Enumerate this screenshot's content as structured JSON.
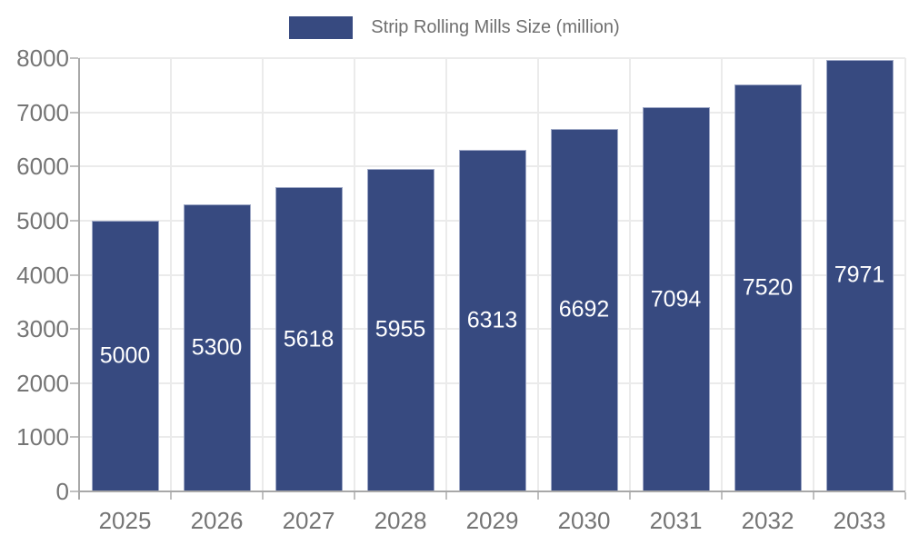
{
  "legend": {
    "label": "Strip Rolling Mills Size (million)"
  },
  "chart_data": {
    "type": "bar",
    "title": "Strip Rolling Mills Size (million)",
    "legend_entries": [
      "Strip Rolling Mills Size (million)"
    ],
    "legend_position": "top-center",
    "categories": [
      "2025",
      "2026",
      "2027",
      "2028",
      "2029",
      "2030",
      "2031",
      "2032",
      "2033"
    ],
    "series": [
      {
        "name": "Strip Rolling Mills Size (million)",
        "values": [
          5000,
          5300,
          5618,
          5955,
          6313,
          6692,
          7094,
          7520,
          7971
        ]
      }
    ],
    "bar_labels": [
      "5000",
      "5300",
      "5618",
      "5955",
      "6313",
      "6692",
      "7094",
      "7520",
      "7971"
    ],
    "xlabel": "",
    "ylabel": "",
    "ylim": [
      0,
      8000
    ],
    "yticks": [
      0,
      1000,
      2000,
      3000,
      4000,
      5000,
      6000,
      7000,
      8000
    ],
    "ytick_labels": [
      "0",
      "1000",
      "2000",
      "3000",
      "4000",
      "5000",
      "6000",
      "7000",
      "8000"
    ],
    "grid": true,
    "grid_vertical": true,
    "colors": {
      "bar": "#374A80",
      "bar_label": "#FFFFFF",
      "axis_line": "#A8A8A8",
      "grid_line": "#EBEBEB",
      "tick_mark": "#C0C0C0",
      "tick_text": "#757575",
      "legend_text": "#6F6F6F"
    }
  }
}
